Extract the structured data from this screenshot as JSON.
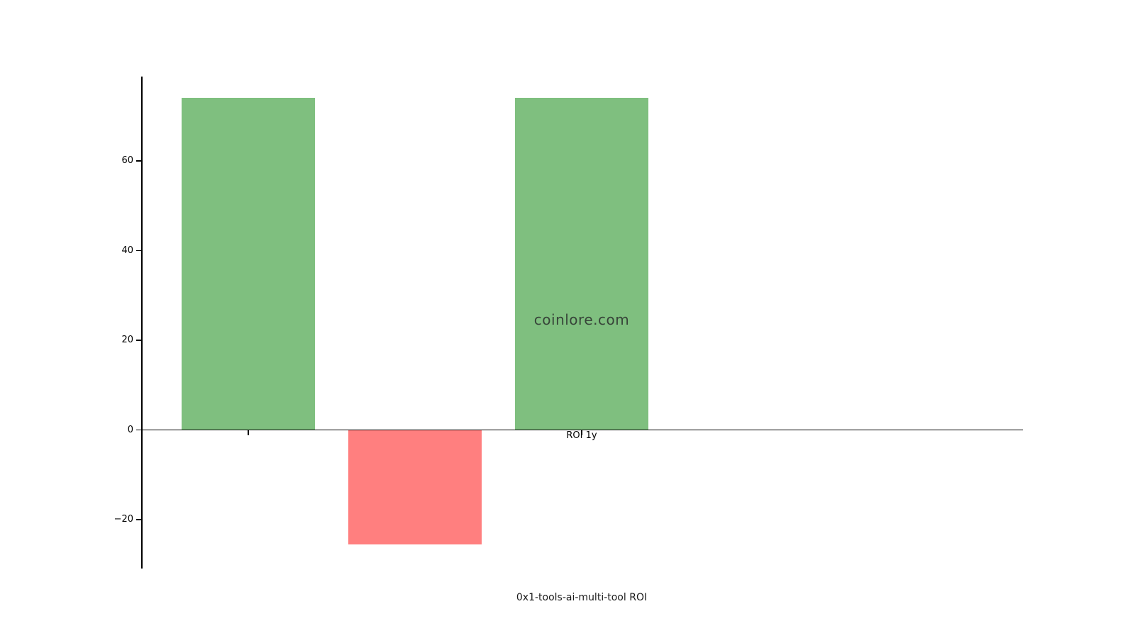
{
  "chart_data": {
    "type": "bar",
    "xlabel": "0x1-tools-ai-multi-tool ROI",
    "ylabel": "",
    "categories": [
      "",
      "",
      "ROI 1y"
    ],
    "values": [
      74,
      -25.5,
      74
    ],
    "bars": [
      {
        "label": "",
        "value": 74
      },
      {
        "label": "",
        "value": -25.5
      },
      {
        "label": "ROI 1y",
        "value": 74
      }
    ],
    "yticks": [
      {
        "value": -20,
        "label": "−20"
      },
      {
        "value": 0,
        "label": "0"
      },
      {
        "value": 20,
        "label": "20"
      },
      {
        "value": 40,
        "label": "40"
      },
      {
        "value": 60,
        "label": "60"
      }
    ],
    "xticks": [
      {
        "bar_index": 0,
        "label": ""
      },
      {
        "bar_index": 2,
        "label": "ROI 1y"
      }
    ],
    "ylim": [
      -31,
      79
    ],
    "grid": false,
    "legend": null,
    "colors": {
      "positive": "#7fbf7f",
      "negative": "#ff7f7f",
      "axis": "#000000",
      "text": "#000000"
    }
  },
  "watermark": {
    "text": "coinlore.com",
    "color": "#374439"
  }
}
